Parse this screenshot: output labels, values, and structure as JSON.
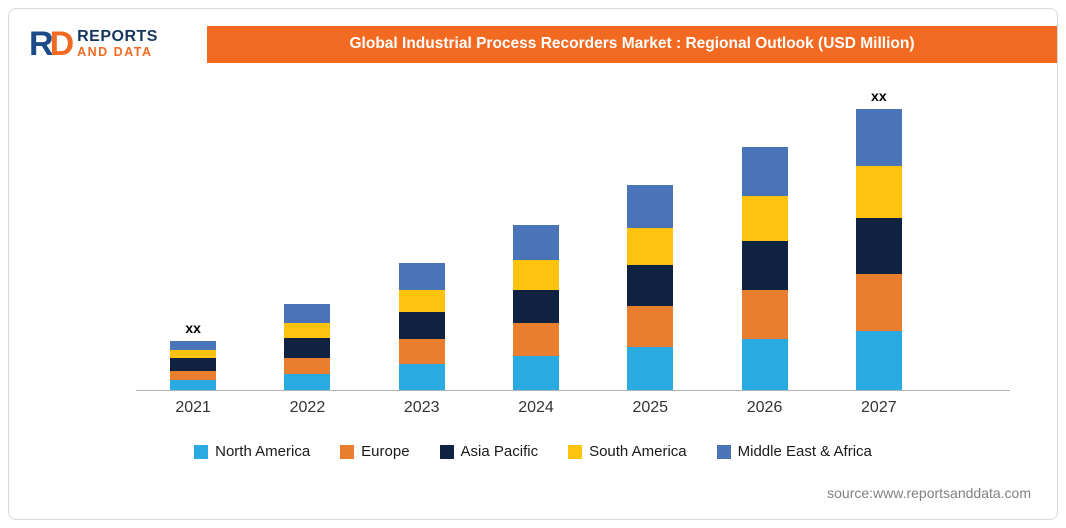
{
  "header": {
    "title": "Global Industrial Process Recorders Market : Regional Outlook (USD Million)",
    "logo": {
      "mark_letter_1": "R",
      "mark_letter_2": "D",
      "line1": "REPORTS",
      "line2": "AND DATA"
    }
  },
  "chart_data": {
    "type": "bar",
    "stacked": true,
    "title": "Global Industrial Process Recorders Market : Regional Outlook (USD Million)",
    "xlabel": "",
    "ylabel": "",
    "ylim": [
      0,
      300
    ],
    "grid": false,
    "legend_position": "bottom",
    "categories": [
      "2021",
      "2022",
      "2023",
      "2024",
      "2025",
      "2026",
      "2027"
    ],
    "series": [
      {
        "name": "North America",
        "color": "#29abe2",
        "values": [
          11,
          17,
          27,
          35,
          44,
          52,
          60
        ]
      },
      {
        "name": "Europe",
        "color": "#e87e2e",
        "values": [
          9,
          16,
          25,
          33,
          41,
          49,
          57
        ]
      },
      {
        "name": "Asia Pacific",
        "color": "#0f2242",
        "values": [
          13,
          20,
          27,
          33,
          41,
          49,
          56
        ]
      },
      {
        "name": "South America",
        "color": "#ffc20e",
        "values": [
          8,
          15,
          22,
          30,
          37,
          45,
          52
        ]
      },
      {
        "name": "Middle East & Africa",
        "color": "#4a74b8",
        "values": [
          9,
          19,
          27,
          35,
          43,
          49,
          57
        ]
      }
    ],
    "annotations": [
      {
        "category": "2021",
        "text": "xx"
      },
      {
        "category": "2027",
        "text": "xx"
      }
    ]
  },
  "colors": {
    "banner": "#f26a21",
    "logo_blue": "#1b4a8a",
    "logo_orange": "#f26a21"
  },
  "footer": {
    "source": "source:www.reportsanddata.com"
  }
}
